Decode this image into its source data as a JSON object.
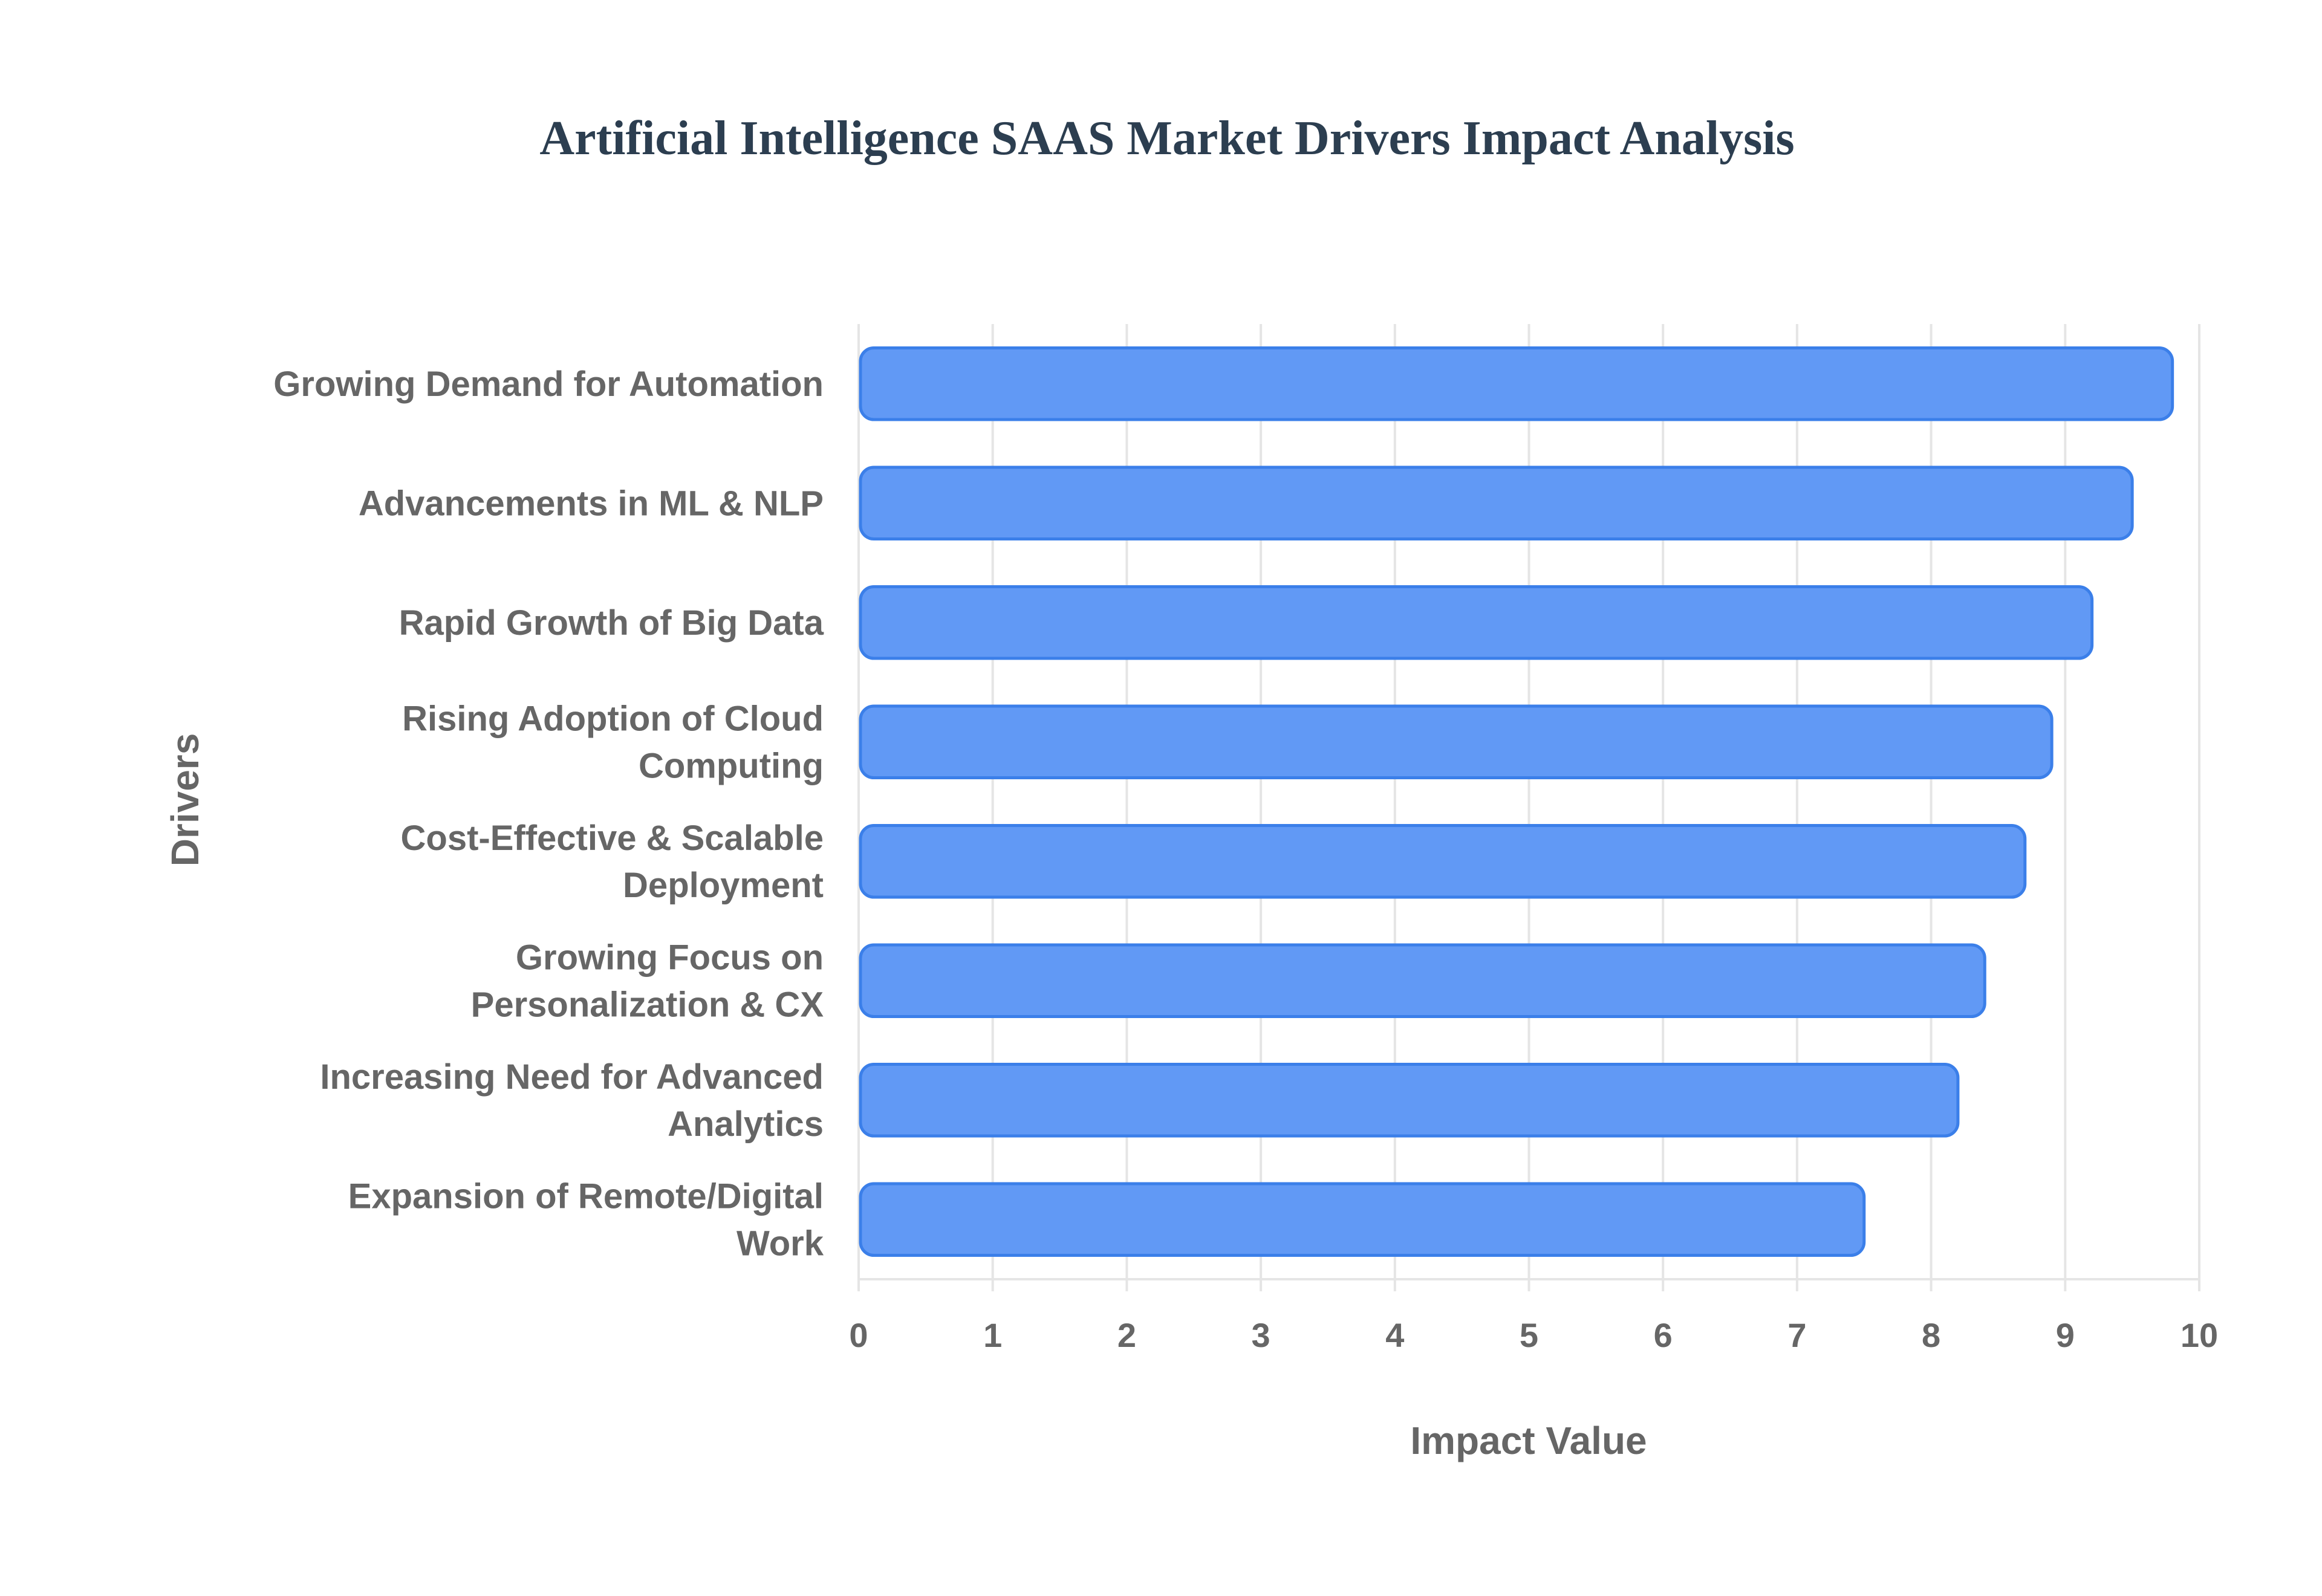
{
  "chart_data": {
    "type": "bar",
    "orientation": "horizontal",
    "title": "Artificial Intelligence SAAS Market Drivers Impact Analysis",
    "xlabel": "Impact Value",
    "ylabel": "Drivers",
    "xlim": [
      0,
      10
    ],
    "xticks": [
      "0",
      "1",
      "2",
      "3",
      "4",
      "5",
      "6",
      "7",
      "8",
      "9",
      "10"
    ],
    "grid": true,
    "categories": [
      [
        "Growing Demand for Automation"
      ],
      [
        "Advancements in ML & NLP"
      ],
      [
        "Rapid Growth of Big Data"
      ],
      [
        "Rising Adoption of Cloud",
        "Computing"
      ],
      [
        "Cost-Effective & Scalable",
        "Deployment"
      ],
      [
        "Growing Focus on",
        "Personalization & CX"
      ],
      [
        "Increasing Need for Advanced",
        "Analytics"
      ],
      [
        "Expansion of Remote/Digital",
        "Work"
      ]
    ],
    "values": [
      9.8,
      9.5,
      9.2,
      8.9,
      8.7,
      8.4,
      8.2,
      7.5
    ],
    "colors": {
      "bar_fill": "#6199f5",
      "bar_border": "#3b7fe9",
      "grid": "#e5e5e5"
    }
  }
}
